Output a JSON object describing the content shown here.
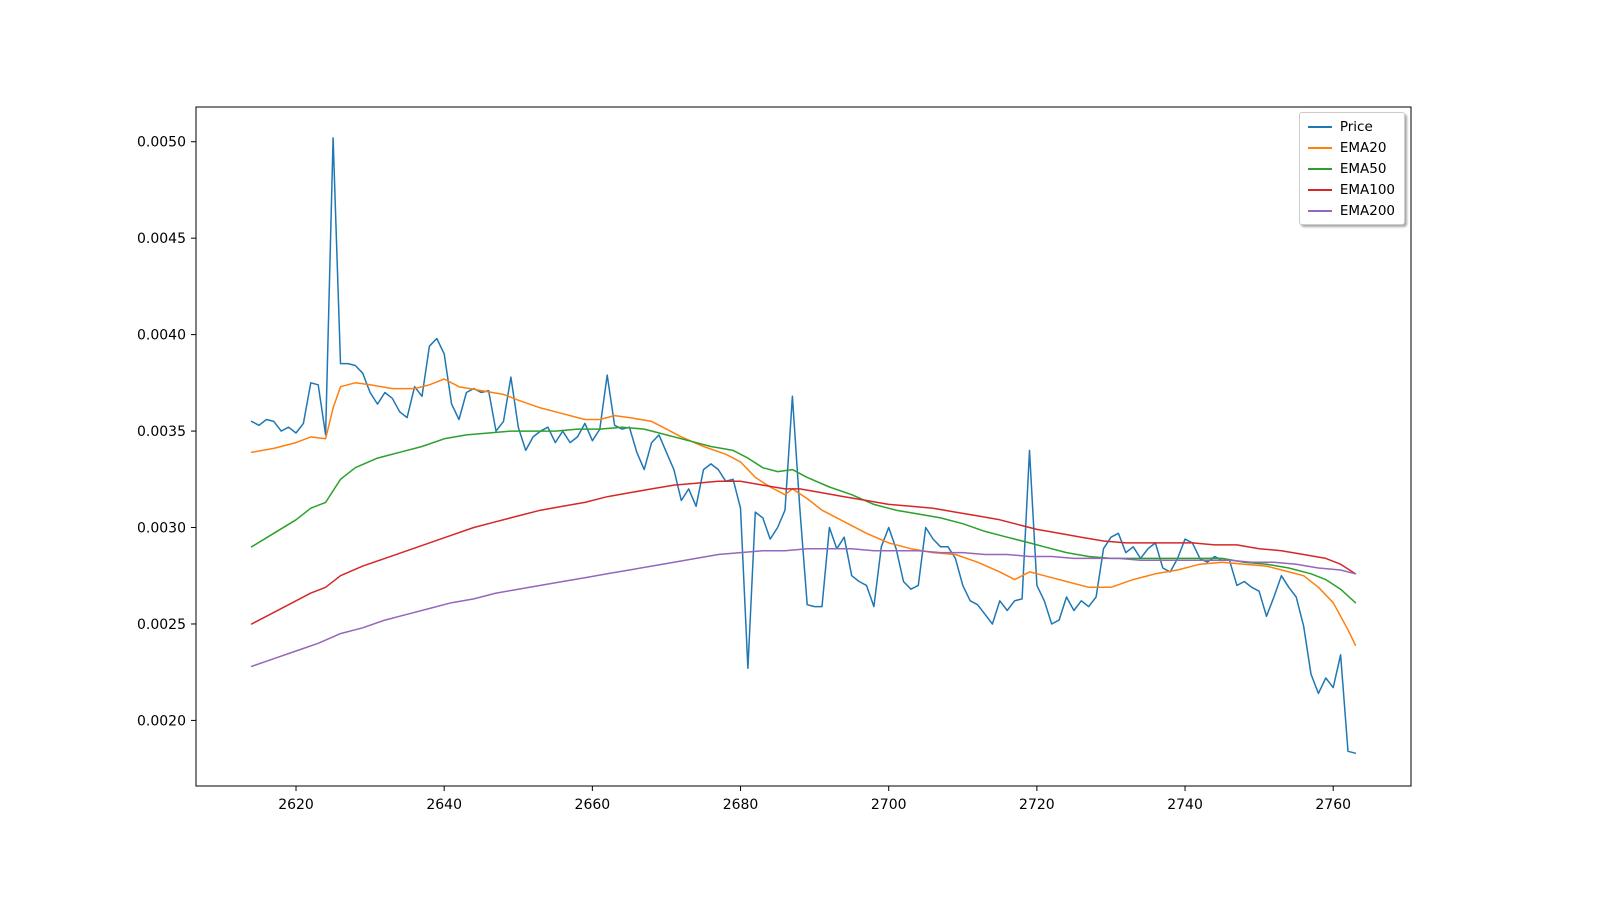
{
  "chart_data": {
    "type": "line",
    "title": "",
    "xlabel": "",
    "ylabel": "",
    "grid": false,
    "legend_position": "upper right",
    "xlim": [
      2606.5,
      2770.5
    ],
    "ylim": [
      0.00166,
      0.00518
    ],
    "xticks": {
      "values": [
        2620,
        2640,
        2660,
        2680,
        2700,
        2720,
        2740,
        2760
      ],
      "labels": [
        "2620",
        "2640",
        "2660",
        "2680",
        "2700",
        "2720",
        "2740",
        "2760"
      ]
    },
    "yticks": {
      "values": [
        0.002,
        0.0025,
        0.003,
        0.0035,
        0.004,
        0.0045,
        0.005
      ],
      "labels": [
        "0.0020",
        "0.0025",
        "0.0030",
        "0.0035",
        "0.0040",
        "0.0045",
        "0.0050"
      ]
    },
    "series": [
      {
        "name": "Price",
        "color": "#1f77b4",
        "x": [
          2614,
          2615,
          2616,
          2617,
          2618,
          2619,
          2620,
          2621,
          2622,
          2623,
          2624,
          2625,
          2626,
          2627,
          2628,
          2629,
          2630,
          2631,
          2632,
          2633,
          2634,
          2635,
          2636,
          2637,
          2638,
          2639,
          2640,
          2641,
          2642,
          2643,
          2644,
          2645,
          2646,
          2647,
          2648,
          2649,
          2650,
          2651,
          2652,
          2653,
          2654,
          2655,
          2656,
          2657,
          2658,
          2659,
          2660,
          2661,
          2662,
          2663,
          2664,
          2665,
          2666,
          2667,
          2668,
          2669,
          2670,
          2671,
          2672,
          2673,
          2674,
          2675,
          2676,
          2677,
          2678,
          2679,
          2680,
          2681,
          2682,
          2683,
          2684,
          2685,
          2686,
          2687,
          2688,
          2689,
          2690,
          2691,
          2692,
          2693,
          2694,
          2695,
          2696,
          2697,
          2698,
          2699,
          2700,
          2701,
          2702,
          2703,
          2704,
          2705,
          2706,
          2707,
          2708,
          2709,
          2710,
          2711,
          2712,
          2713,
          2714,
          2715,
          2716,
          2717,
          2718,
          2719,
          2720,
          2721,
          2722,
          2723,
          2724,
          2725,
          2726,
          2727,
          2728,
          2729,
          2730,
          2731,
          2732,
          2733,
          2734,
          2735,
          2736,
          2737,
          2738,
          2739,
          2740,
          2741,
          2742,
          2743,
          2744,
          2745,
          2746,
          2747,
          2748,
          2749,
          2750,
          2751,
          2752,
          2753,
          2754,
          2755,
          2756,
          2757,
          2758,
          2759,
          2760,
          2761,
          2762,
          2763
        ],
        "y": [
          0.00355,
          0.00353,
          0.00356,
          0.00355,
          0.0035,
          0.00352,
          0.00349,
          0.00354,
          0.00375,
          0.00374,
          0.00348,
          0.00502,
          0.00385,
          0.00385,
          0.00384,
          0.0038,
          0.0037,
          0.00364,
          0.0037,
          0.00367,
          0.0036,
          0.00357,
          0.00373,
          0.00368,
          0.00394,
          0.00398,
          0.0039,
          0.00364,
          0.00356,
          0.0037,
          0.00372,
          0.0037,
          0.00371,
          0.0035,
          0.00355,
          0.00378,
          0.00352,
          0.0034,
          0.00347,
          0.0035,
          0.00352,
          0.00344,
          0.0035,
          0.00344,
          0.00347,
          0.00354,
          0.00345,
          0.00351,
          0.00379,
          0.00353,
          0.00351,
          0.00352,
          0.00339,
          0.0033,
          0.00344,
          0.00348,
          0.00339,
          0.0033,
          0.00314,
          0.0032,
          0.00311,
          0.0033,
          0.00333,
          0.0033,
          0.00324,
          0.00325,
          0.0031,
          0.00227,
          0.00308,
          0.00305,
          0.00294,
          0.003,
          0.00309,
          0.00368,
          0.0031,
          0.0026,
          0.00259,
          0.00259,
          0.003,
          0.00289,
          0.00295,
          0.00275,
          0.00272,
          0.0027,
          0.00259,
          0.0029,
          0.003,
          0.00289,
          0.00272,
          0.00268,
          0.0027,
          0.003,
          0.00294,
          0.0029,
          0.0029,
          0.00284,
          0.0027,
          0.00262,
          0.0026,
          0.00255,
          0.0025,
          0.00262,
          0.00257,
          0.00262,
          0.00263,
          0.0034,
          0.0027,
          0.00262,
          0.0025,
          0.00252,
          0.00264,
          0.00257,
          0.00262,
          0.00259,
          0.00264,
          0.00289,
          0.00295,
          0.00297,
          0.00287,
          0.0029,
          0.00284,
          0.00289,
          0.00292,
          0.00279,
          0.00277,
          0.00284,
          0.00294,
          0.00292,
          0.00284,
          0.00282,
          0.00285,
          0.00283,
          0.00283,
          0.0027,
          0.00272,
          0.00269,
          0.00267,
          0.00254,
          0.00264,
          0.00275,
          0.00269,
          0.00264,
          0.00249,
          0.00224,
          0.00214,
          0.00222,
          0.00217,
          0.00234,
          0.00184,
          0.00183
        ]
      },
      {
        "name": "EMA20",
        "color": "#ff7f0e",
        "x": [
          2614,
          2617,
          2620,
          2622,
          2624,
          2625,
          2626,
          2628,
          2630,
          2633,
          2636,
          2638,
          2640,
          2642,
          2645,
          2648,
          2650,
          2653,
          2656,
          2659,
          2661,
          2663,
          2665,
          2668,
          2670,
          2672,
          2675,
          2678,
          2680,
          2682,
          2684,
          2686,
          2687,
          2689,
          2691,
          2694,
          2697,
          2700,
          2703,
          2706,
          2709,
          2712,
          2715,
          2717,
          2719,
          2721,
          2724,
          2727,
          2730,
          2733,
          2736,
          2739,
          2742,
          2745,
          2748,
          2751,
          2754,
          2756,
          2758,
          2760,
          2762,
          2763
        ],
        "y": [
          0.00339,
          0.00341,
          0.00344,
          0.00347,
          0.00346,
          0.00362,
          0.00373,
          0.00375,
          0.00374,
          0.00372,
          0.00372,
          0.00374,
          0.00377,
          0.00373,
          0.00371,
          0.00369,
          0.00366,
          0.00362,
          0.00359,
          0.00356,
          0.00356,
          0.00358,
          0.00357,
          0.00355,
          0.00351,
          0.00347,
          0.00342,
          0.00338,
          0.00334,
          0.00326,
          0.00321,
          0.00317,
          0.0032,
          0.00315,
          0.00309,
          0.00303,
          0.00297,
          0.00292,
          0.00289,
          0.00287,
          0.00286,
          0.00282,
          0.00277,
          0.00273,
          0.00277,
          0.00275,
          0.00272,
          0.00269,
          0.00269,
          0.00273,
          0.00276,
          0.00278,
          0.00281,
          0.00282,
          0.00281,
          0.0028,
          0.00277,
          0.00275,
          0.00269,
          0.00261,
          0.00247,
          0.00239
        ]
      },
      {
        "name": "EMA50",
        "color": "#2ca02c",
        "x": [
          2614,
          2617,
          2620,
          2622,
          2624,
          2626,
          2628,
          2631,
          2634,
          2637,
          2640,
          2643,
          2646,
          2649,
          2652,
          2655,
          2658,
          2661,
          2664,
          2667,
          2670,
          2673,
          2676,
          2679,
          2681,
          2683,
          2685,
          2687,
          2689,
          2692,
          2695,
          2698,
          2701,
          2704,
          2707,
          2710,
          2713,
          2716,
          2719,
          2721,
          2724,
          2727,
          2730,
          2733,
          2736,
          2739,
          2742,
          2745,
          2748,
          2751,
          2754,
          2757,
          2759,
          2761,
          2763
        ],
        "y": [
          0.0029,
          0.00297,
          0.00304,
          0.0031,
          0.00313,
          0.00325,
          0.00331,
          0.00336,
          0.00339,
          0.00342,
          0.00346,
          0.00348,
          0.00349,
          0.0035,
          0.0035,
          0.0035,
          0.00351,
          0.00351,
          0.00352,
          0.00351,
          0.00348,
          0.00345,
          0.00342,
          0.0034,
          0.00336,
          0.00331,
          0.00329,
          0.0033,
          0.00326,
          0.00321,
          0.00317,
          0.00312,
          0.00309,
          0.00307,
          0.00305,
          0.00302,
          0.00298,
          0.00295,
          0.00292,
          0.0029,
          0.00287,
          0.00285,
          0.00284,
          0.00284,
          0.00284,
          0.00284,
          0.00284,
          0.00284,
          0.00282,
          0.00281,
          0.00279,
          0.00276,
          0.00273,
          0.00268,
          0.00261
        ]
      },
      {
        "name": "EMA100",
        "color": "#d62728",
        "x": [
          2614,
          2617,
          2620,
          2622,
          2624,
          2626,
          2629,
          2632,
          2635,
          2638,
          2641,
          2644,
          2647,
          2650,
          2653,
          2656,
          2659,
          2662,
          2665,
          2668,
          2671,
          2674,
          2677,
          2680,
          2683,
          2686,
          2688,
          2691,
          2694,
          2697,
          2700,
          2703,
          2706,
          2709,
          2712,
          2715,
          2718,
          2720,
          2723,
          2726,
          2729,
          2732,
          2735,
          2738,
          2741,
          2744,
          2747,
          2750,
          2753,
          2756,
          2759,
          2761,
          2763
        ],
        "y": [
          0.0025,
          0.00256,
          0.00262,
          0.00266,
          0.00269,
          0.00275,
          0.0028,
          0.00284,
          0.00288,
          0.00292,
          0.00296,
          0.003,
          0.00303,
          0.00306,
          0.00309,
          0.00311,
          0.00313,
          0.00316,
          0.00318,
          0.0032,
          0.00322,
          0.00323,
          0.00324,
          0.00324,
          0.00322,
          0.0032,
          0.0032,
          0.00318,
          0.00316,
          0.00314,
          0.00312,
          0.00311,
          0.0031,
          0.00308,
          0.00306,
          0.00304,
          0.00301,
          0.00299,
          0.00297,
          0.00295,
          0.00293,
          0.00292,
          0.00292,
          0.00292,
          0.00292,
          0.00291,
          0.00291,
          0.00289,
          0.00288,
          0.00286,
          0.00284,
          0.00281,
          0.00276
        ]
      },
      {
        "name": "EMA200",
        "color": "#9467bd",
        "x": [
          2614,
          2617,
          2620,
          2623,
          2626,
          2629,
          2632,
          2635,
          2638,
          2641,
          2644,
          2647,
          2650,
          2653,
          2656,
          2659,
          2662,
          2665,
          2668,
          2671,
          2674,
          2677,
          2680,
          2683,
          2686,
          2689,
          2692,
          2695,
          2698,
          2701,
          2704,
          2707,
          2710,
          2713,
          2716,
          2719,
          2722,
          2725,
          2728,
          2731,
          2734,
          2737,
          2740,
          2743,
          2746,
          2749,
          2752,
          2755,
          2758,
          2761,
          2763
        ],
        "y": [
          0.00228,
          0.00232,
          0.00236,
          0.0024,
          0.00245,
          0.00248,
          0.00252,
          0.00255,
          0.00258,
          0.00261,
          0.00263,
          0.00266,
          0.00268,
          0.0027,
          0.00272,
          0.00274,
          0.00276,
          0.00278,
          0.0028,
          0.00282,
          0.00284,
          0.00286,
          0.00287,
          0.00288,
          0.00288,
          0.00289,
          0.00289,
          0.00289,
          0.00288,
          0.00288,
          0.00288,
          0.00287,
          0.00287,
          0.00286,
          0.00286,
          0.00285,
          0.00285,
          0.00284,
          0.00284,
          0.00284,
          0.00283,
          0.00283,
          0.00283,
          0.00283,
          0.00283,
          0.00282,
          0.00282,
          0.00281,
          0.00279,
          0.00278,
          0.00276
        ]
      }
    ]
  },
  "colors": {
    "background": "#ffffff",
    "axis": "#000000",
    "tick_label": "#000000",
    "legend_border": "#cccccc"
  }
}
